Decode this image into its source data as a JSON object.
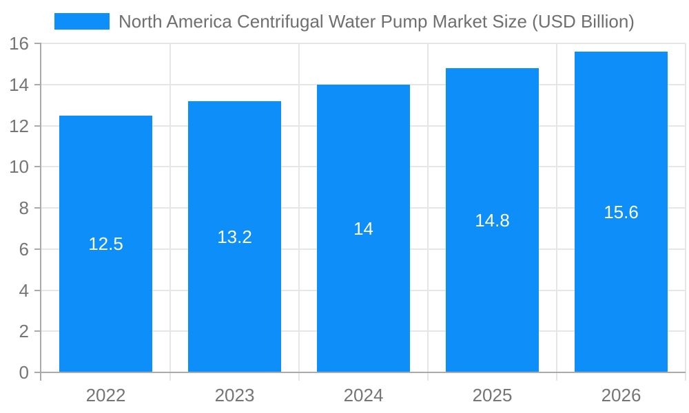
{
  "legend": {
    "label": "North America Centrifugal Water Pump Market Size (USD Billion)"
  },
  "chart_data": {
    "type": "bar",
    "title": "North America Centrifugal Water Pump Market Size (USD Billion)",
    "categories": [
      "2022",
      "2023",
      "2024",
      "2025",
      "2026"
    ],
    "values": [
      12.5,
      13.2,
      14,
      14.8,
      15.6
    ],
    "value_labels": [
      "12.5",
      "13.2",
      "14",
      "14.8",
      "15.6"
    ],
    "xlabel": "",
    "ylabel": "",
    "ylim": [
      0,
      16
    ],
    "yticks": [
      0,
      2,
      4,
      6,
      8,
      10,
      12,
      14,
      16
    ],
    "grid": true,
    "legend_position": "top",
    "colors": {
      "bar": "#0d8ef8",
      "grid": "#e6e6e6",
      "axis": "#aaaaaa",
      "axis_label": "#757575",
      "legend_text": "#6f6f6f",
      "data_label": "#ffffff",
      "background": "#ffffff"
    }
  }
}
